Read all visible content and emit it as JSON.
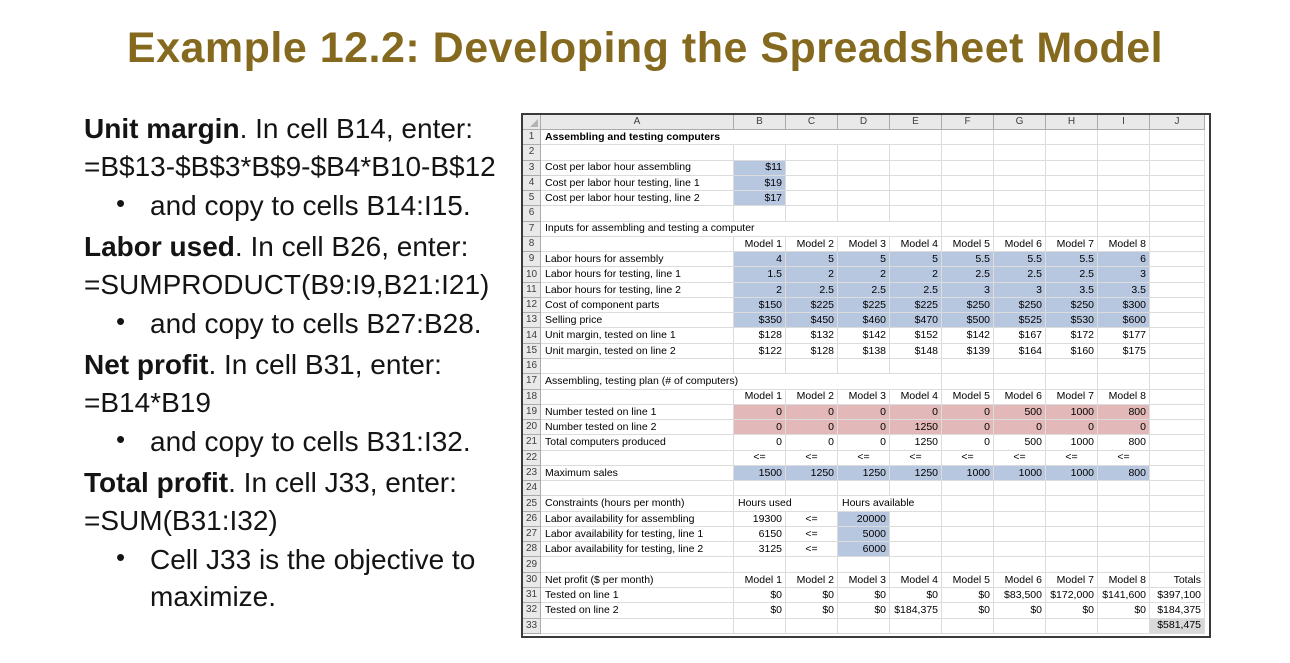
{
  "title": "Example 12.2: Developing the Spreadsheet Model",
  "colors": {
    "title_accent": "#84691e",
    "text": "#141414"
  },
  "instructions": [
    {
      "lead": "Unit margin",
      "head_rest": ". In cell B14, enter:",
      "formula": "=B$13-$B$3*B$9-$B4*B10-B$12",
      "bullets": [
        "and copy to cells B14:I15."
      ]
    },
    {
      "lead": "Labor used",
      "head_rest": ". In cell B26, enter:",
      "formula": "=SUMPRODUCT(B9:I9,B21:I21)",
      "bullets": [
        "and copy to cells B27:B28."
      ]
    },
    {
      "lead": "Net profit",
      "head_rest": ". In cell B31, enter:",
      "formula": "=B14*B19",
      "bullets": [
        "and copy to cells B31:I32."
      ]
    },
    {
      "lead": "Total profit",
      "head_rest": ". In cell J33, enter:",
      "formula": "=SUM(B31:I32)",
      "bullets": [
        "Cell J33 is the objective to maximize."
      ]
    }
  ],
  "spreadsheet": {
    "column_headers": [
      "A",
      "B",
      "C",
      "D",
      "E",
      "F",
      "G",
      "H",
      "I",
      "J"
    ],
    "colors": {
      "blue": "#b8c7e0",
      "pink": "#e2b9b8",
      "gray": "#d9d9d9"
    },
    "rows": [
      {
        "n": 1,
        "label": "Assembling and testing computers",
        "bold": true
      },
      {
        "n": 2
      },
      {
        "n": 3,
        "label": "Cost per labor hour assembling",
        "v": [
          "$11"
        ],
        "f": "blue:B"
      },
      {
        "n": 4,
        "label": "Cost per labor hour testing, line 1",
        "v": [
          "$19"
        ],
        "f": "blue:B"
      },
      {
        "n": 5,
        "label": "Cost per labor hour testing, line 2",
        "v": [
          "$17"
        ],
        "f": "blue:B"
      },
      {
        "n": 6
      },
      {
        "n": 7,
        "label": "Inputs for assembling and testing a computer"
      },
      {
        "n": 8,
        "v": [
          "Model 1",
          "Model 2",
          "Model 3",
          "Model 4",
          "Model 5",
          "Model 6",
          "Model 7",
          "Model 8"
        ]
      },
      {
        "n": 9,
        "label": "Labor hours for assembly",
        "v": [
          "4",
          "5",
          "5",
          "5",
          "5.5",
          "5.5",
          "5.5",
          "6"
        ],
        "f": "blue:B-I"
      },
      {
        "n": 10,
        "label": "Labor hours for testing, line 1",
        "v": [
          "1.5",
          "2",
          "2",
          "2",
          "2.5",
          "2.5",
          "2.5",
          "3"
        ],
        "f": "blue:B-I"
      },
      {
        "n": 11,
        "label": "Labor hours for testing, line 2",
        "v": [
          "2",
          "2.5",
          "2.5",
          "2.5",
          "3",
          "3",
          "3.5",
          "3.5"
        ],
        "f": "blue:B-I"
      },
      {
        "n": 12,
        "label": "Cost of component parts",
        "v": [
          "$150",
          "$225",
          "$225",
          "$225",
          "$250",
          "$250",
          "$250",
          "$300"
        ],
        "f": "blue:B-I"
      },
      {
        "n": 13,
        "label": "Selling price",
        "v": [
          "$350",
          "$450",
          "$460",
          "$470",
          "$500",
          "$525",
          "$530",
          "$600"
        ],
        "f": "blue:B-I"
      },
      {
        "n": 14,
        "label": "Unit margin, tested on line 1",
        "v": [
          "$128",
          "$132",
          "$142",
          "$152",
          "$142",
          "$167",
          "$172",
          "$177"
        ]
      },
      {
        "n": 15,
        "label": "Unit margin, tested on line 2",
        "v": [
          "$122",
          "$128",
          "$138",
          "$148",
          "$139",
          "$164",
          "$160",
          "$175"
        ]
      },
      {
        "n": 16
      },
      {
        "n": 17,
        "label": "Assembling, testing plan (# of computers)"
      },
      {
        "n": 18,
        "v": [
          "Model 1",
          "Model 2",
          "Model 3",
          "Model 4",
          "Model 5",
          "Model 6",
          "Model 7",
          "Model 8"
        ]
      },
      {
        "n": 19,
        "label": "Number tested on line 1",
        "v": [
          "0",
          "0",
          "0",
          "0",
          "0",
          "500",
          "1000",
          "800"
        ],
        "f": "pink:B-I"
      },
      {
        "n": 20,
        "label": "Number tested on line 2",
        "v": [
          "0",
          "0",
          "0",
          "1250",
          "0",
          "0",
          "0",
          "0"
        ],
        "f": "pink:B-I"
      },
      {
        "n": 21,
        "label": "Total computers produced",
        "v": [
          "0",
          "0",
          "0",
          "1250",
          "0",
          "500",
          "1000",
          "800"
        ]
      },
      {
        "n": 22,
        "v": [
          "<=",
          "<=",
          "<=",
          "<=",
          "<=",
          "<=",
          "<=",
          "<="
        ]
      },
      {
        "n": 23,
        "label": "Maximum sales",
        "v": [
          "1500",
          "1250",
          "1250",
          "1250",
          "1000",
          "1000",
          "1000",
          "800"
        ],
        "f": "blue:B-I"
      },
      {
        "n": 24
      },
      {
        "n": 25,
        "label": "Constraints (hours per month)",
        "v": [
          "Hours used",
          "",
          "Hours available"
        ],
        "al": {
          "B": "l2",
          "D": "l2"
        }
      },
      {
        "n": 26,
        "label": "Labor availability for assembling",
        "v": [
          "19300",
          "<=",
          "20000"
        ],
        "f": "blue:D"
      },
      {
        "n": 27,
        "label": "Labor availability for testing, line 1",
        "v": [
          "6150",
          "<=",
          "5000"
        ],
        "f": "blue:D"
      },
      {
        "n": 28,
        "label": "Labor availability for testing, line 2",
        "v": [
          "3125",
          "<=",
          "6000"
        ],
        "f": "blue:D"
      },
      {
        "n": 29
      },
      {
        "n": 30,
        "label": "Net profit ($ per month)",
        "v": [
          "Model 1",
          "Model 2",
          "Model 3",
          "Model 4",
          "Model 5",
          "Model 6",
          "Model 7",
          "Model 8",
          "Totals"
        ]
      },
      {
        "n": 31,
        "label": "Tested on line 1",
        "v": [
          "$0",
          "$0",
          "$0",
          "$0",
          "$0",
          "$83,500",
          "$172,000",
          "$141,600",
          "$397,100"
        ]
      },
      {
        "n": 32,
        "label": "Tested on line 2",
        "v": [
          "$0",
          "$0",
          "$0",
          "$184,375",
          "$0",
          "$0",
          "$0",
          "$0",
          "$184,375"
        ]
      },
      {
        "n": 33,
        "v": [
          "",
          "",
          "",
          "",
          "",
          "",
          "",
          "",
          "$581,475"
        ],
        "f": "gray:J"
      }
    ]
  }
}
